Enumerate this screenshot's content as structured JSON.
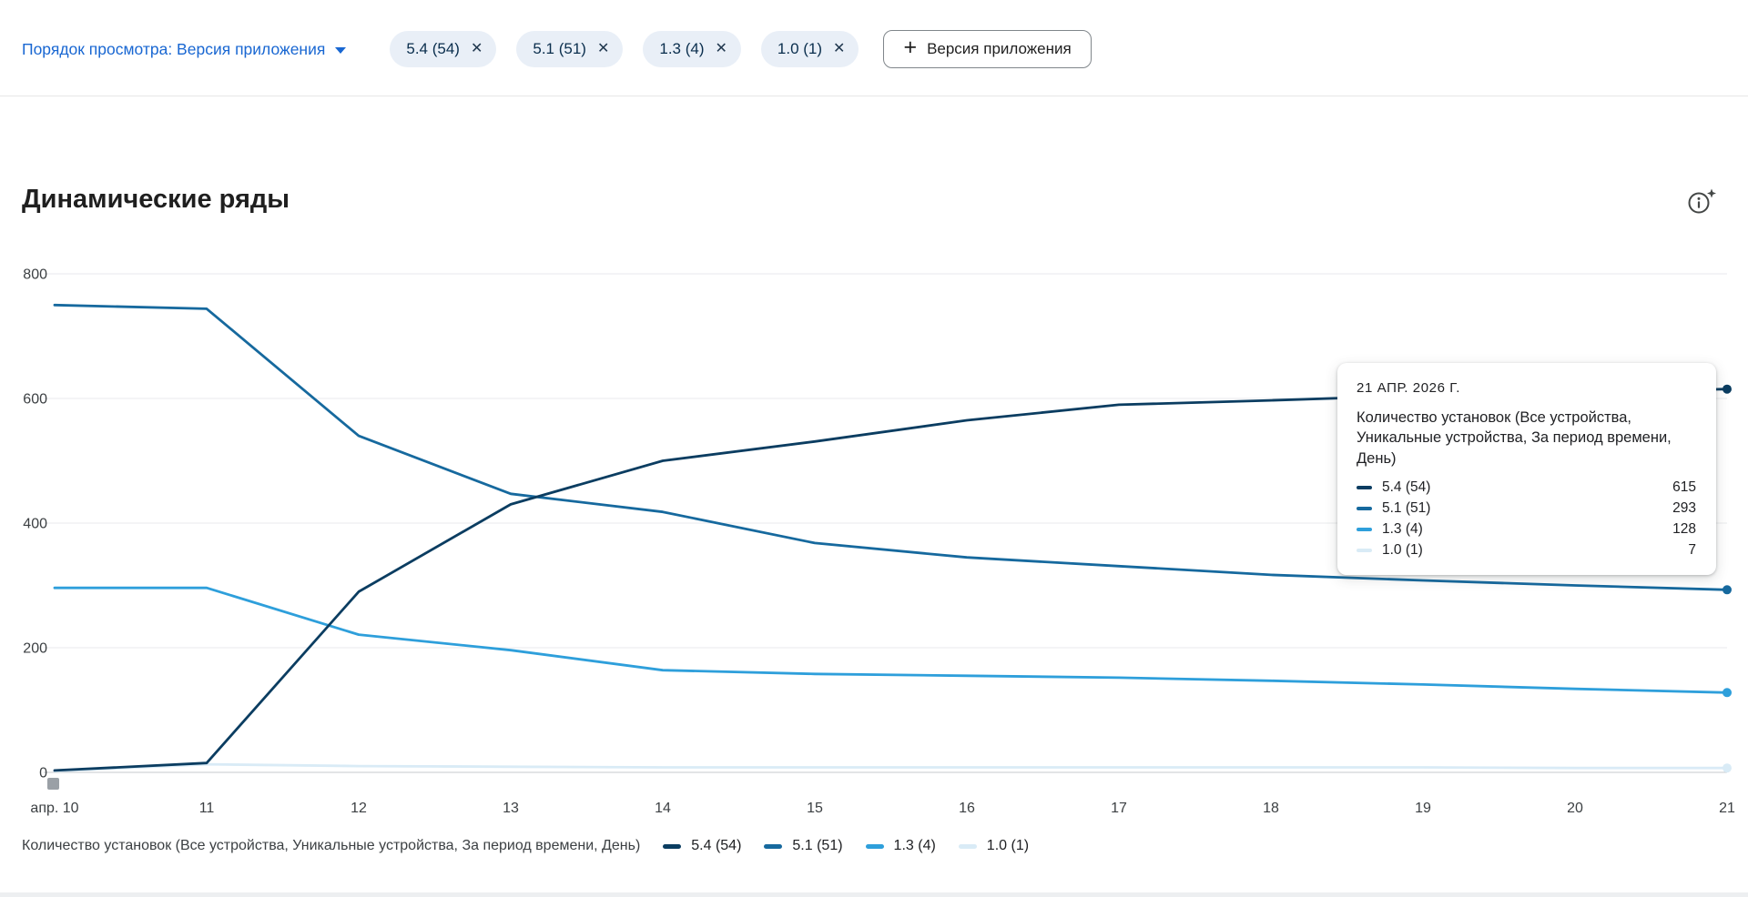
{
  "toolbar": {
    "view_order_label": "Порядок просмотра: Версия приложения",
    "chips": [
      {
        "label": "5.4 (54)"
      },
      {
        "label": "5.1 (51)"
      },
      {
        "label": "1.3 (4)"
      },
      {
        "label": "1.0 (1)"
      }
    ],
    "add_button_label": "Версия приложения",
    "remove_icon": "✕",
    "plus_icon": "+"
  },
  "section": {
    "title": "Динамические ряды"
  },
  "chart_data": {
    "type": "line",
    "title": "Динамические ряды",
    "metric": "Количество установок (Все устройства, Уникальные устройства, За период времени, День)",
    "x_labels": [
      "апр. 10",
      "11",
      "12",
      "13",
      "14",
      "15",
      "16",
      "17",
      "18",
      "19",
      "20",
      "21"
    ],
    "ylim": [
      0,
      800
    ],
    "yticks": [
      0,
      200,
      400,
      600,
      800
    ],
    "grid": "horizontal",
    "legend_position": "bottom",
    "series": [
      {
        "name": "5.4 (54)",
        "color": "#0b3d61",
        "values": [
          3,
          15,
          290,
          430,
          500,
          531,
          565,
          590,
          597,
          605,
          610,
          615
        ]
      },
      {
        "name": "5.1 (51)",
        "color": "#16699e",
        "values": [
          750,
          744,
          540,
          447,
          418,
          368,
          345,
          331,
          317,
          308,
          300,
          293
        ]
      },
      {
        "name": "1.3 (4)",
        "color": "#2e9fdb",
        "values": [
          296,
          296,
          221,
          196,
          164,
          158,
          155,
          152,
          147,
          141,
          134,
          128
        ]
      },
      {
        "name": "1.0 (1)",
        "color": "#d9ebf6",
        "values": [
          2,
          13,
          10,
          9,
          8,
          8,
          8,
          8,
          8,
          8,
          7,
          7
        ]
      }
    ]
  },
  "tooltip": {
    "date": "21 АПР. 2026 Г.",
    "metric": "Количество установок (Все устройства, Уникальные устройства, За период времени, День)",
    "rows": [
      {
        "label": "5.4 (54)",
        "value": "615"
      },
      {
        "label": "5.1 (51)",
        "value": "293"
      },
      {
        "label": "1.3 (4)",
        "value": "128"
      },
      {
        "label": "1.0 (1)",
        "value": "7"
      }
    ]
  },
  "legend": {
    "metric_label": "Количество установок (Все устройства, Уникальные устройства, За период времени, День)",
    "items": [
      {
        "label": "5.4 (54)"
      },
      {
        "label": "5.1 (51)"
      },
      {
        "label": "1.3 (4)"
      },
      {
        "label": "1.0 (1)"
      }
    ]
  }
}
